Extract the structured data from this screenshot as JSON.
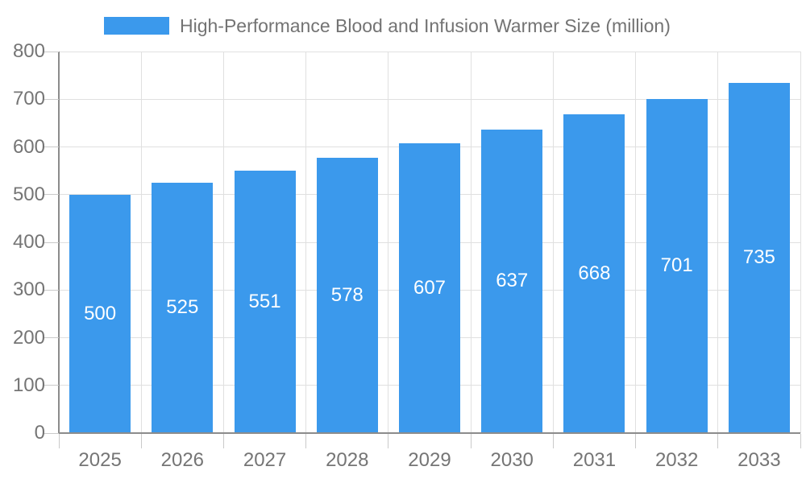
{
  "chart_data": {
    "type": "bar",
    "title": "High-Performance Blood and Infusion Warmer Size (million)",
    "legend": {
      "label": "High-Performance Blood and Infusion Warmer Size (million)",
      "position": "top"
    },
    "categories": [
      "2025",
      "2026",
      "2027",
      "2028",
      "2029",
      "2030",
      "2031",
      "2032",
      "2033"
    ],
    "series": [
      {
        "name": "High-Performance Blood and Infusion Warmer Size (million)",
        "values": [
          500,
          525,
          551,
          578,
          607,
          637,
          668,
          701,
          735
        ]
      }
    ],
    "bar_labels": [
      "500",
      "525",
      "551",
      "578",
      "607",
      "637",
      "668",
      "701",
      "735"
    ],
    "xlabel": "",
    "ylabel": "",
    "ylim": [
      0,
      800
    ],
    "yticks": [
      0,
      100,
      200,
      300,
      400,
      500,
      600,
      700,
      800
    ],
    "grid": true,
    "colors": {
      "bar": "#3B99EC",
      "bar_value_text": "#FFFFFF",
      "axis_text": "#757575",
      "legend_text": "#737373",
      "grid_line": "#E0E0E0",
      "axis_line": "#8C8C8C",
      "tick_line": "#CACACA"
    }
  }
}
